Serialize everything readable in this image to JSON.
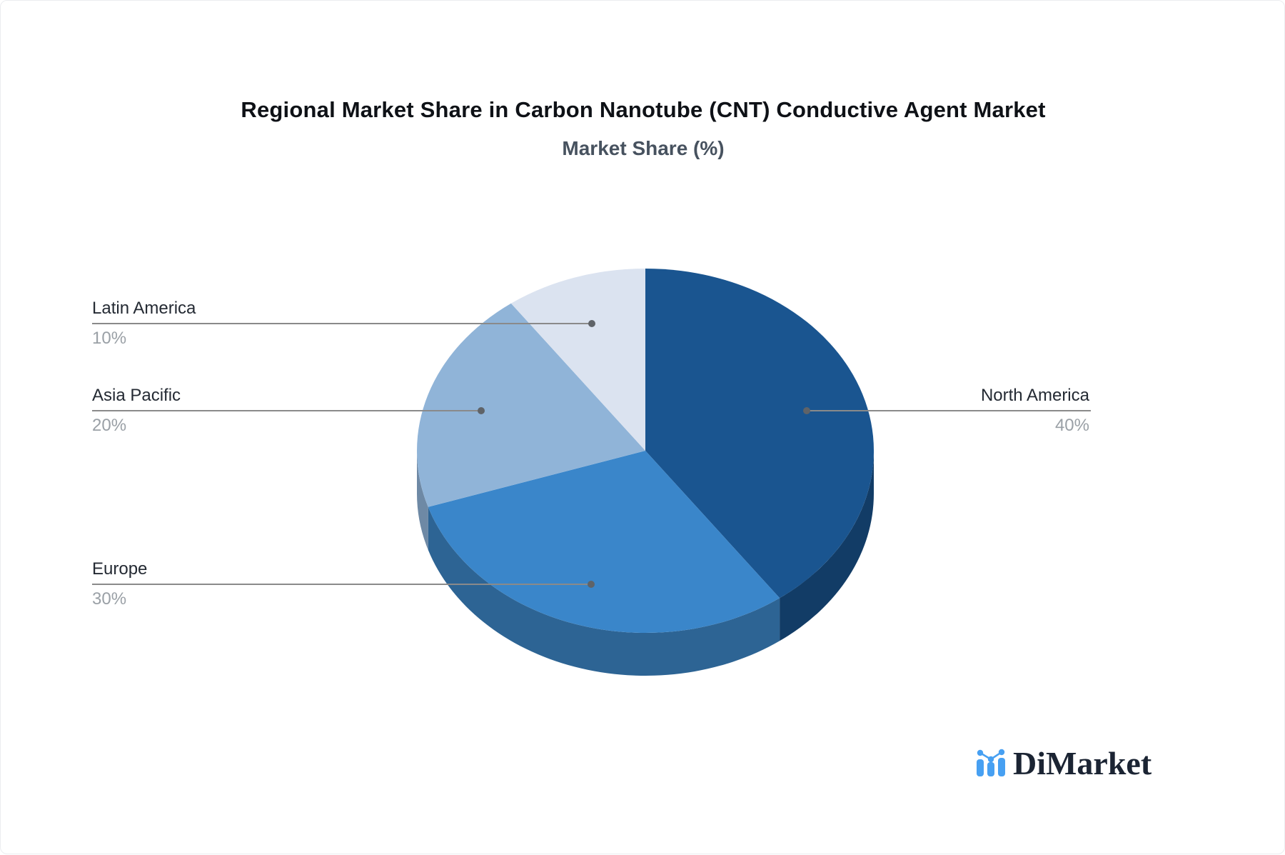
{
  "title": "Regional Market Share in Carbon Nanotube (CNT) Conductive Agent Market",
  "subtitle": "Market Share (%)",
  "logo": {
    "text": "DiMarket",
    "icon": "bar-chart-trend-icon",
    "icon_color": "#47a0f2",
    "text_color": "#1b2433"
  },
  "colors": {
    "background": "#ffffff",
    "title_text": "#0e1116",
    "subtitle_text": "#47525f",
    "label_text": "#242a33",
    "value_text": "#9aa0a6",
    "leader_line": "#8a8a8a",
    "leader_dot": "#5f6368"
  },
  "chart_data": {
    "type": "pie",
    "title": "Regional Market Share in Carbon Nanotube (CNT) Conductive Agent Market",
    "subtitle": "Market Share (%)",
    "unit": "%",
    "effect": "3d",
    "start_angle_deg": 0,
    "direction": "clockwise",
    "legend_position": "callout-labels",
    "slices": [
      {
        "label": "North America",
        "value": 40,
        "display": "40%",
        "color": "#1a5590",
        "side_color": "#123c66"
      },
      {
        "label": "Europe",
        "value": 30,
        "display": "30%",
        "color": "#3a86ca",
        "side_color": "#2d6494"
      },
      {
        "label": "Asia Pacific",
        "value": 20,
        "display": "20%",
        "color": "#90b4d8",
        "side_color": "#6e89a5"
      },
      {
        "label": "Latin America",
        "value": 10,
        "display": "10%",
        "color": "#dbe3f0",
        "side_color": "#a9b4c9"
      }
    ]
  }
}
